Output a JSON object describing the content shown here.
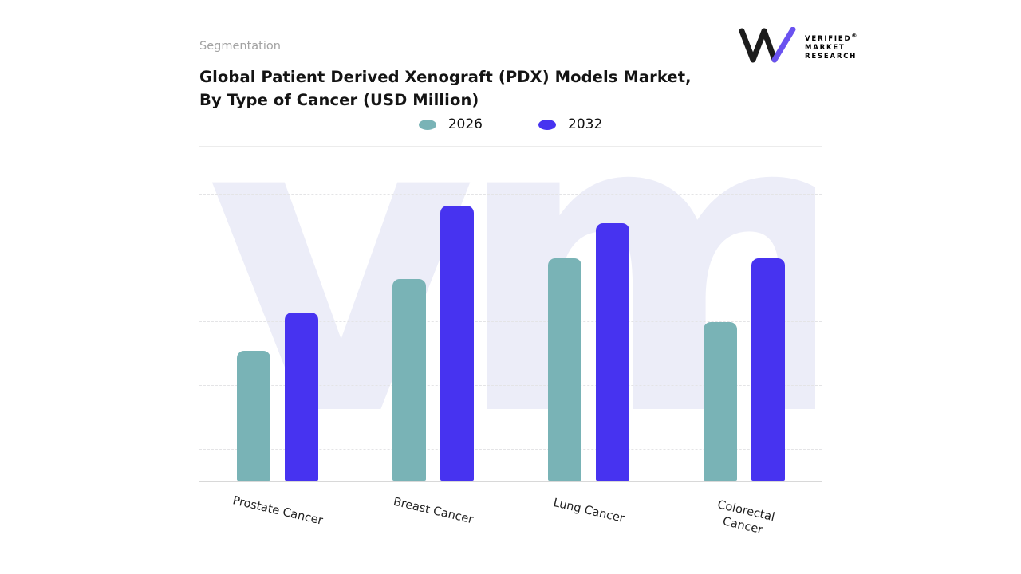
{
  "page": {
    "background": "#ffffff"
  },
  "header": {
    "eyebrow": "Segmentation",
    "title_line1": "Global Patient Derived Xenograft (PDX) Models Market,",
    "title_line2": "By Type of Cancer (USD Million)"
  },
  "logo": {
    "lines": [
      "VERIFIED",
      "MARKET",
      "RESEARCH"
    ],
    "registered_mark": "®",
    "text_color": "#2fb3a9",
    "registered_color": "#e2674a",
    "mark_black": "#1c1c1c",
    "mark_purple": "#6a52f0"
  },
  "legend": [
    {
      "label": "2026",
      "color": "#79b3b6"
    },
    {
      "label": "2032",
      "color": "#4733f0"
    }
  ],
  "watermark": {
    "text": "vm",
    "color": "#ecedf8"
  },
  "chart_data": {
    "type": "bar",
    "title": "Global Patient Derived Xenograft (PDX) Models Market, By Type of Cancer (USD Million)",
    "categories": [
      "Prostate Cancer",
      "Breast Cancer",
      "Lung Cancer",
      "Colorectal Cancer"
    ],
    "series": [
      {
        "name": "2026",
        "color": "#79b3b6",
        "values": [
          163,
          253,
          279,
          199
        ]
      },
      {
        "name": "2032",
        "color": "#4733f0",
        "values": [
          211,
          345,
          323,
          279
        ]
      }
    ],
    "xlabel": "",
    "ylabel": "",
    "ylim": [
      0,
      378
    ],
    "grid": "dashed-horizontal",
    "legend_position": "top-center"
  }
}
